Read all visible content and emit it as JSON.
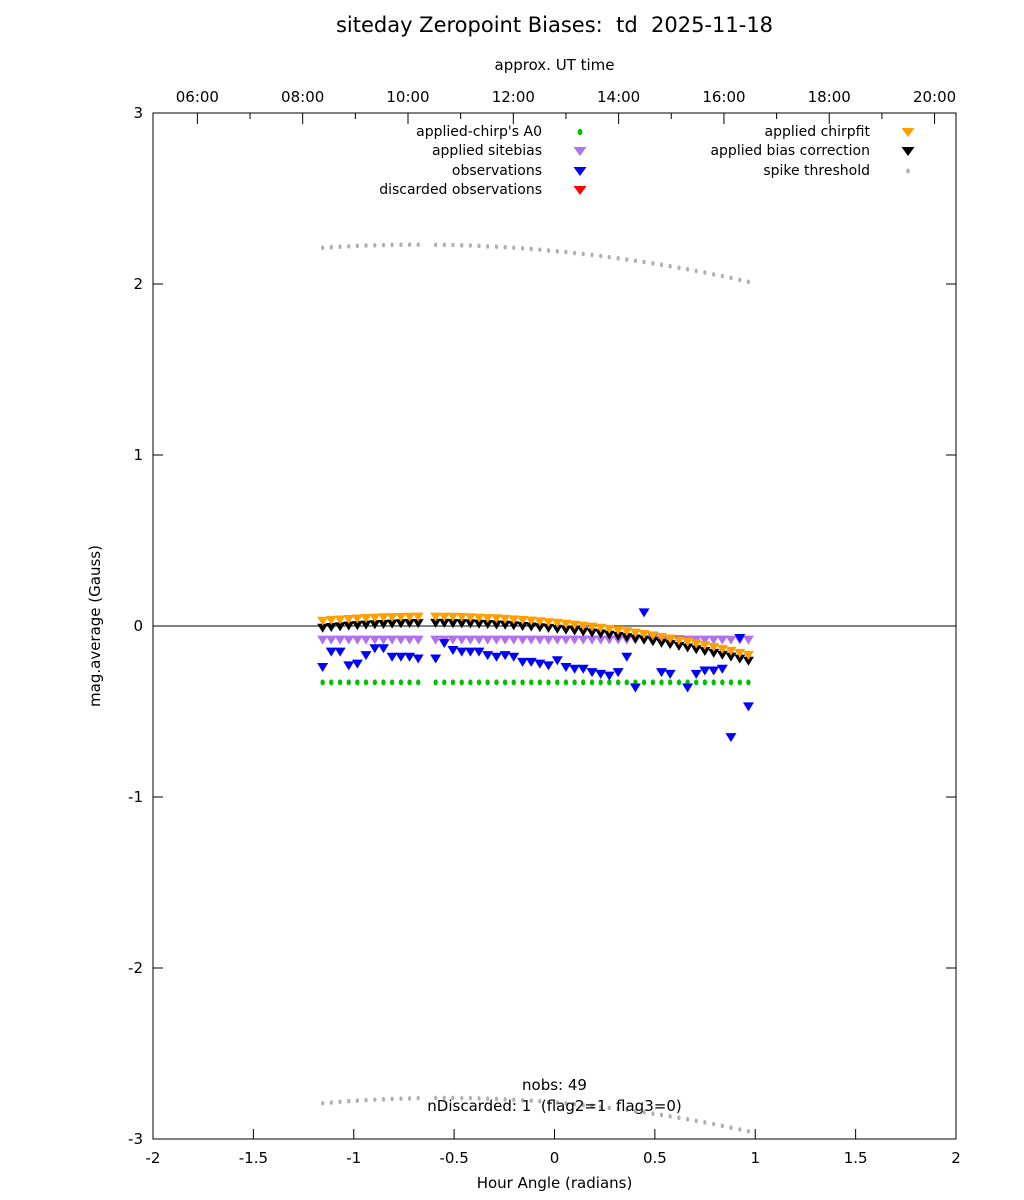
{
  "chart_data": {
    "type": "scatter",
    "title": "siteday Zeropoint Biases:  td  2025-11-18",
    "xlabel": "Hour Angle (radians)",
    "x2label": "approx. UT time",
    "ylabel": "mag.average (Gauss)",
    "xlim": [
      -2,
      2
    ],
    "ylim": [
      -3,
      3
    ],
    "grid": false,
    "x_ticks": [
      -2,
      -1.5,
      -1,
      -0.5,
      0,
      0.5,
      1,
      1.5,
      2
    ],
    "y_ticks": [
      -3,
      -2,
      -1,
      0,
      1,
      2,
      3
    ],
    "x2_tick_hours": [
      6,
      8,
      10,
      12,
      14,
      16,
      18,
      20
    ],
    "x2_tick_labels": [
      "06:00",
      "08:00",
      "10:00",
      "12:00",
      "14:00",
      "16:00",
      "18:00",
      "20:00"
    ],
    "x2_minor_hours": [
      7,
      9,
      11,
      13,
      15,
      17,
      19
    ],
    "x2_to_x": {
      "offset": -1.779,
      "per_hour": 0.2623
    },
    "zero_line": true,
    "annotations": {
      "nobs": "nobs: 49",
      "ndiscarded": "nDiscarded: 1  (flag2=1  flag3=0)"
    },
    "x": [
      -1.155,
      -1.112,
      -1.068,
      -1.025,
      -0.982,
      -0.939,
      -0.895,
      -0.852,
      -0.809,
      -0.765,
      -0.722,
      -0.679,
      -0.592,
      -0.549,
      -0.506,
      -0.462,
      -0.419,
      -0.376,
      -0.333,
      -0.289,
      -0.246,
      -0.203,
      -0.159,
      -0.116,
      -0.073,
      -0.03,
      0.014,
      0.057,
      0.1,
      0.143,
      0.187,
      0.23,
      0.273,
      0.317,
      0.36,
      0.403,
      0.446,
      0.49,
      0.533,
      0.576,
      0.62,
      0.663,
      0.706,
      0.749,
      0.793,
      0.836,
      0.879,
      0.923,
      0.966
    ],
    "series": [
      {
        "name": "spike threshold",
        "color": "#b0b0b0",
        "marker": "small-dot",
        "values": [
          2.212,
          2.215,
          2.218,
          2.22,
          2.223,
          2.225,
          2.226,
          2.228,
          2.229,
          2.229,
          2.23,
          2.23,
          2.229,
          2.229,
          2.228,
          2.226,
          2.225,
          2.223,
          2.22,
          2.218,
          2.215,
          2.212,
          2.208,
          2.205,
          2.201,
          2.196,
          2.191,
          2.187,
          2.181,
          2.176,
          2.17,
          2.164,
          2.157,
          2.15,
          2.143,
          2.136,
          2.129,
          2.12,
          2.112,
          2.104,
          2.095,
          2.086,
          2.076,
          2.067,
          2.056,
          2.046,
          2.036,
          2.024,
          2.013
        ],
        "values2": [
          -2.791,
          -2.787,
          -2.783,
          -2.779,
          -2.776,
          -2.773,
          -2.77,
          -2.768,
          -2.766,
          -2.764,
          -2.763,
          -2.761,
          -2.76,
          -2.76,
          -2.76,
          -2.761,
          -2.761,
          -2.763,
          -2.764,
          -2.766,
          -2.768,
          -2.77,
          -2.773,
          -2.776,
          -2.779,
          -2.783,
          -2.787,
          -2.791,
          -2.796,
          -2.801,
          -2.806,
          -2.812,
          -2.818,
          -2.824,
          -2.83,
          -2.837,
          -2.844,
          -2.852,
          -2.86,
          -2.868,
          -2.876,
          -2.885,
          -2.894,
          -2.903,
          -2.913,
          -2.923,
          -2.934,
          -2.944,
          -2.955
        ]
      },
      {
        "name": "applied-chirp's A0",
        "color": "#00c000",
        "marker": "dot",
        "constant": -0.33
      },
      {
        "name": "applied sitebias",
        "color": "#b070f0",
        "marker": "triangle-down",
        "constant": -0.08
      },
      {
        "name": "observations",
        "color": "#0000ff",
        "marker": "triangle-down",
        "values": [
          -0.24,
          -0.15,
          -0.15,
          -0.23,
          -0.22,
          -0.17,
          -0.13,
          -0.13,
          -0.18,
          -0.18,
          -0.18,
          -0.19,
          -0.19,
          -0.1,
          -0.14,
          -0.15,
          -0.15,
          -0.15,
          -0.17,
          -0.18,
          -0.17,
          -0.18,
          -0.21,
          -0.21,
          -0.22,
          -0.23,
          -0.2,
          -0.24,
          -0.25,
          -0.25,
          -0.27,
          -0.28,
          -0.29,
          -0.27,
          -0.18,
          -0.36,
          0.08,
          -0.06,
          -0.27,
          -0.28,
          -0.08,
          -0.36,
          -0.28,
          -0.26,
          -0.26,
          -0.25,
          -0.65,
          -0.07,
          -0.47
        ]
      },
      {
        "name": "applied bias correction",
        "color": "#000000",
        "marker": "triangle-down",
        "values": [
          -0.01,
          -0.006,
          -0.002,
          0.002,
          0.005,
          0.008,
          0.01,
          0.012,
          0.014,
          0.016,
          0.017,
          0.017,
          0.018,
          0.018,
          0.017,
          0.016,
          0.015,
          0.013,
          0.012,
          0.009,
          0.007,
          0.004,
          0.0,
          -0.003,
          -0.007,
          -0.011,
          -0.016,
          -0.021,
          -0.026,
          -0.032,
          -0.038,
          -0.044,
          -0.051,
          -0.058,
          -0.065,
          -0.073,
          -0.08,
          -0.089,
          -0.098,
          -0.106,
          -0.116,
          -0.126,
          -0.136,
          -0.146,
          -0.157,
          -0.168,
          -0.179,
          -0.191,
          -0.203
        ]
      },
      {
        "name": "applied chirpfit",
        "color": "#ffa000",
        "marker": "triangle-down",
        "values": [
          0.031,
          0.035,
          0.038,
          0.041,
          0.044,
          0.047,
          0.049,
          0.051,
          0.052,
          0.053,
          0.054,
          0.055,
          0.055,
          0.054,
          0.054,
          0.053,
          0.051,
          0.049,
          0.047,
          0.045,
          0.042,
          0.039,
          0.035,
          0.032,
          0.028,
          0.023,
          0.019,
          0.013,
          0.008,
          0.002,
          -0.004,
          -0.01,
          -0.017,
          -0.024,
          -0.031,
          -0.039,
          -0.047,
          -0.055,
          -0.064,
          -0.073,
          -0.083,
          -0.092,
          -0.102,
          -0.112,
          -0.123,
          -0.134,
          -0.145,
          -0.157,
          -0.169
        ]
      },
      {
        "name": "discarded observations",
        "color": "#ff0000",
        "marker": "triangle-down",
        "values": []
      }
    ]
  },
  "legend": {
    "columns": [
      {
        "entries": [
          {
            "label": "applied-chirp's A0",
            "marker": "dot",
            "color": "#00c000"
          },
          {
            "label": "applied sitebias",
            "marker": "triangle-down",
            "color": "#b070f0"
          },
          {
            "label": "observations",
            "marker": "triangle-down",
            "color": "#0000ff"
          },
          {
            "label": "discarded observations",
            "marker": "triangle-down",
            "color": "#ff0000"
          }
        ]
      },
      {
        "entries": [
          {
            "label": "applied chirpfit",
            "marker": "triangle-down",
            "color": "#ffa000"
          },
          {
            "label": "applied bias correction",
            "marker": "triangle-down",
            "color": "#000000"
          },
          {
            "label": "spike threshold",
            "marker": "small-dot",
            "color": "#b0b0b0"
          }
        ]
      }
    ]
  }
}
